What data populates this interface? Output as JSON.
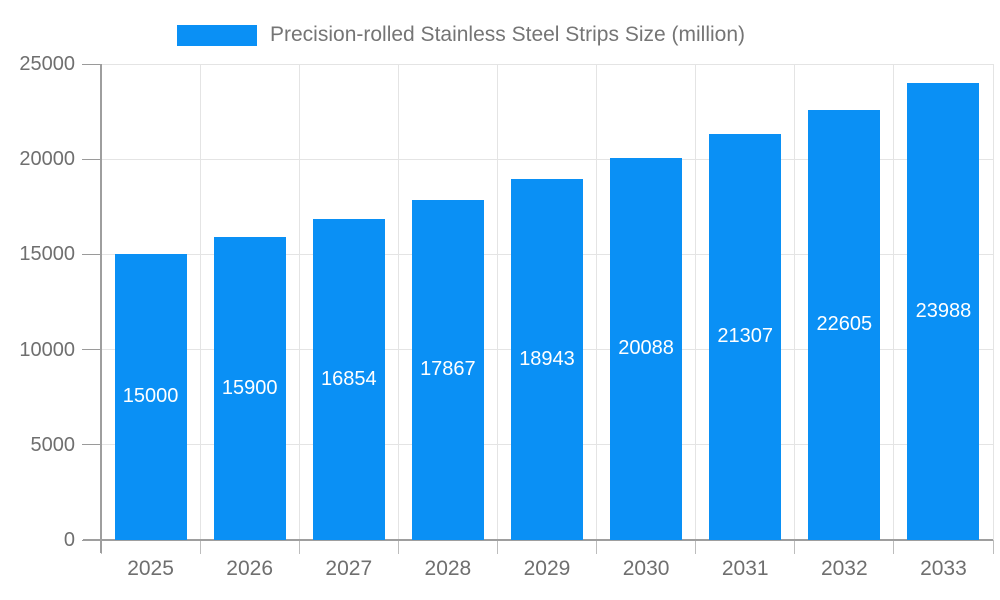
{
  "chart_data": {
    "type": "bar",
    "title": "Precision-rolled Stainless Steel Strips Size (million)",
    "categories": [
      "2025",
      "2026",
      "2027",
      "2028",
      "2029",
      "2030",
      "2031",
      "2032",
      "2033"
    ],
    "series": [
      {
        "name": "Precision-rolled Stainless Steel Strips Size (million)",
        "values": [
          15000,
          15900,
          16854,
          17867,
          18943,
          20088,
          21307,
          22605,
          23988
        ]
      }
    ],
    "value_labels_shown": true,
    "xlabel": "",
    "ylabel": "",
    "ylim": [
      0,
      25000
    ],
    "yticks": [
      0,
      5000,
      10000,
      15000,
      20000,
      25000
    ],
    "grid": true,
    "legend_position": "top",
    "colors": {
      "bar": "#0a90f5",
      "value_label": "#ffffff",
      "grid_line": "#e4e4e4",
      "axis_line": "#9e9e9e",
      "tick_label": "#6f6f6f",
      "legend_text": "#757575"
    }
  },
  "legend": {
    "label": "Precision-rolled Stainless Steel Strips Size (million)"
  }
}
